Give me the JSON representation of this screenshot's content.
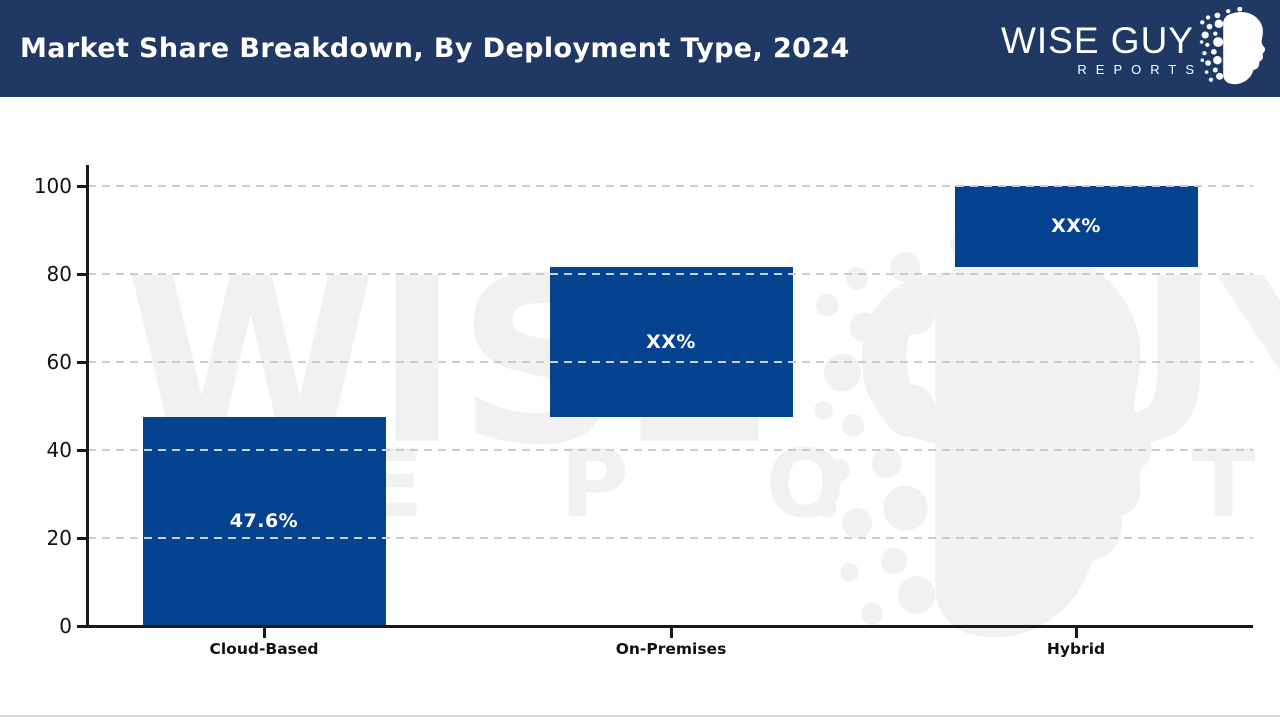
{
  "header": {
    "title": "Market Share Breakdown, By Deployment Type, 2024",
    "logo": {
      "line1": "WISE GUY",
      "line2": "REPORTS",
      "face_icon": "dotted-head-profile"
    }
  },
  "watermark": {
    "line1": "WISE GUY",
    "line2": "R E P O R T S",
    "face_icon": "dotted-head-profile"
  },
  "colors": {
    "header_bg": "#1f3864",
    "title_text": "#ffffff",
    "bar_fill": "#05428f",
    "bar_label_text": "#ffffff",
    "gridline": "#cccccc",
    "axis": "#1a1a1a",
    "watermark": "#f1f1f2"
  },
  "chart_data": {
    "type": "bar",
    "subtype": "waterfall",
    "title": "Market Share Breakdown, By Deployment Type, 2024",
    "xlabel": "",
    "ylabel": "",
    "categories": [
      "Cloud-Based",
      "On-Premises",
      "Hybrid"
    ],
    "segments": [
      {
        "category": "Cloud-Based",
        "start": 0,
        "end": 47.6,
        "label": "47.6%"
      },
      {
        "category": "On-Premises",
        "start": 47.6,
        "end": 81.6,
        "label": "XX%"
      },
      {
        "category": "Hybrid",
        "start": 81.6,
        "end": 100,
        "label": "XX%"
      }
    ],
    "ylim": [
      0,
      100
    ],
    "yticks": [
      0,
      20,
      40,
      60,
      80,
      100
    ],
    "grid": "horizontal dashed, drawn over bars",
    "legend": "none",
    "bar_color": "#05428f",
    "value_labels_inside_bars": true
  }
}
